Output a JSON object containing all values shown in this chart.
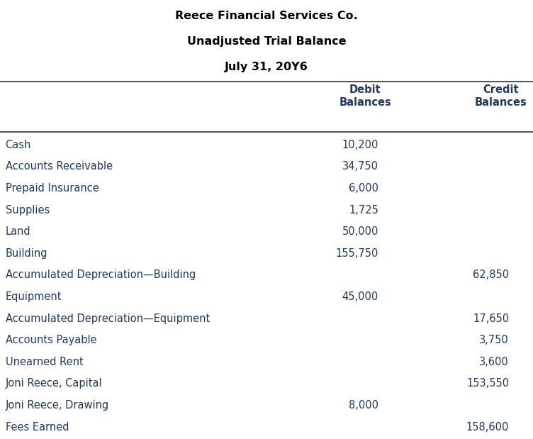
{
  "title1": "Reece Financial Services Co.",
  "title2": "Unadjusted Trial Balance",
  "title3": "July 31, 20Y6",
  "col_headers": [
    "Debit\nBalances",
    "Credit\nBalances"
  ],
  "rows": [
    {
      "account": "Cash",
      "debit": "10,200",
      "credit": ""
    },
    {
      "account": "Accounts Receivable",
      "debit": "34,750",
      "credit": ""
    },
    {
      "account": "Prepaid Insurance",
      "debit": "6,000",
      "credit": ""
    },
    {
      "account": "Supplies",
      "debit": "1,725",
      "credit": ""
    },
    {
      "account": "Land",
      "debit": "50,000",
      "credit": ""
    },
    {
      "account": "Building",
      "debit": "155,750",
      "credit": ""
    },
    {
      "account": "Accumulated Depreciation—Building",
      "debit": "",
      "credit": "62,850"
    },
    {
      "account": "Equipment",
      "debit": "45,000",
      "credit": ""
    },
    {
      "account": "Accumulated Depreciation—Equipment",
      "debit": "",
      "credit": "17,650"
    },
    {
      "account": "Accounts Payable",
      "debit": "",
      "credit": "3,750"
    },
    {
      "account": "Unearned Rent",
      "debit": "",
      "credit": "3,600"
    },
    {
      "account": "Joni Reece, Capital",
      "debit": "",
      "credit": "153,550"
    },
    {
      "account": "Joni Reece, Drawing",
      "debit": "8,000",
      "credit": ""
    },
    {
      "account": "Fees Earned",
      "debit": "",
      "credit": "158,600"
    }
  ],
  "text_color": "#1f3864",
  "header_color": "#1f3864",
  "title_color": "#000000",
  "line_color": "#555555",
  "bg_color": "#ffffff",
  "font_size": 10.5,
  "header_font_size": 10.5,
  "title_font_size": 11.5
}
